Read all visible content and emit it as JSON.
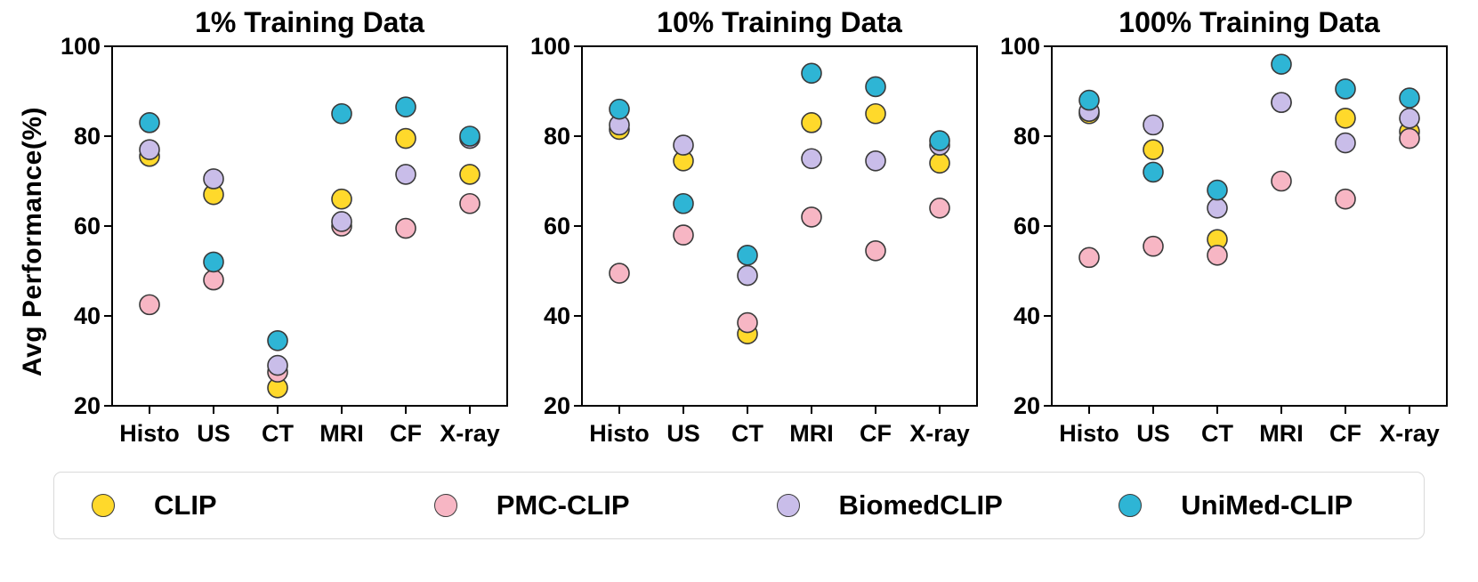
{
  "colors": {
    "CLIP": "#FFD92B",
    "PMC-CLIP": "#F7B6C4",
    "BiomedCLIP": "#C9BDE9",
    "UniMed-CLIP": "#2EB5D5",
    "marker_edge": "#3a3a3a",
    "axis": "#000000",
    "legend_border": "#d9d9d9"
  },
  "chart_data": [
    {
      "type": "scatter",
      "title": "1% Training Data",
      "ylabel": "Avg Performance(%)",
      "ylim": [
        20,
        100
      ],
      "yticks": [
        20,
        40,
        60,
        80,
        100
      ],
      "grid": false,
      "categories": [
        "Histo",
        "US",
        "CT",
        "MRI",
        "CF",
        "X-ray"
      ],
      "series": [
        {
          "name": "CLIP",
          "values": [
            75.5,
            67,
            24,
            66,
            79.5,
            71.5
          ]
        },
        {
          "name": "PMC-CLIP",
          "values": [
            42.5,
            48,
            27.5,
            60,
            59.5,
            65
          ]
        },
        {
          "name": "BiomedCLIP",
          "values": [
            77,
            70.5,
            29,
            61,
            71.5,
            79.5
          ]
        },
        {
          "name": "UniMed-CLIP",
          "values": [
            83,
            52,
            34.5,
            85,
            86.5,
            80
          ]
        }
      ]
    },
    {
      "type": "scatter",
      "title": "10% Training Data",
      "ylabel": "",
      "ylim": [
        20,
        100
      ],
      "yticks": [
        20,
        40,
        60,
        80,
        100
      ],
      "grid": false,
      "categories": [
        "Histo",
        "US",
        "CT",
        "MRI",
        "CF",
        "X-ray"
      ],
      "series": [
        {
          "name": "CLIP",
          "values": [
            81.5,
            74.5,
            36,
            83,
            85,
            74
          ]
        },
        {
          "name": "PMC-CLIP",
          "values": [
            49.5,
            58,
            38.5,
            62,
            54.5,
            64
          ]
        },
        {
          "name": "BiomedCLIP",
          "values": [
            82.5,
            78,
            49,
            75,
            74.5,
            78
          ]
        },
        {
          "name": "UniMed-CLIP",
          "values": [
            86,
            65,
            53.5,
            94,
            91,
            79
          ]
        }
      ]
    },
    {
      "type": "scatter",
      "title": "100% Training Data",
      "ylabel": "",
      "ylim": [
        20,
        100
      ],
      "yticks": [
        20,
        40,
        60,
        80,
        100
      ],
      "grid": false,
      "categories": [
        "Histo",
        "US",
        "CT",
        "MRI",
        "CF",
        "X-ray"
      ],
      "series": [
        {
          "name": "CLIP",
          "values": [
            85,
            77,
            57,
            87.5,
            84,
            81
          ]
        },
        {
          "name": "PMC-CLIP",
          "values": [
            53,
            55.5,
            53.5,
            70,
            66,
            79.5
          ]
        },
        {
          "name": "BiomedCLIP",
          "values": [
            85.5,
            82.5,
            64,
            87.5,
            78.5,
            84
          ]
        },
        {
          "name": "UniMed-CLIP",
          "values": [
            88,
            72,
            68,
            96,
            90.5,
            88.5
          ]
        }
      ]
    }
  ],
  "legend": {
    "items": [
      {
        "label": "CLIP",
        "color": "#FFD92B"
      },
      {
        "label": "PMC-CLIP",
        "color": "#F7B6C4"
      },
      {
        "label": "BiomedCLIP",
        "color": "#C9BDE9"
      },
      {
        "label": "UniMed-CLIP",
        "color": "#2EB5D5"
      }
    ]
  }
}
